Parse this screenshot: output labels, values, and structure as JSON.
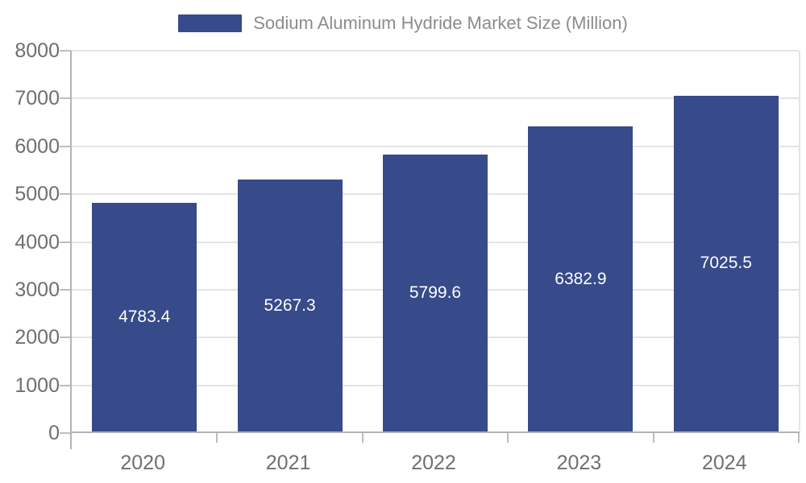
{
  "legend": {
    "label": "Sodium Aluminum Hydride Market Size (Million)"
  },
  "chart_data": {
    "type": "bar",
    "title": "Sodium Aluminum Hydride Market Size (Million)",
    "categories": [
      "2020",
      "2021",
      "2022",
      "2023",
      "2024"
    ],
    "values": [
      4783.4,
      5267.3,
      5799.6,
      6382.9,
      7025.5
    ],
    "value_labels": [
      "4783.4",
      "5267.3",
      "5799.6",
      "6382.9",
      "7025.5"
    ],
    "xlabel": "",
    "ylabel": "",
    "ylim": [
      0,
      8000
    ],
    "yticks": [
      0,
      1000,
      2000,
      3000,
      4000,
      5000,
      6000,
      7000,
      8000
    ],
    "grid": true,
    "legend_position": "top-center",
    "colors": {
      "bar": "#374A8A",
      "value_label": "#FFFFFF",
      "axis_label": "#6F6F6F",
      "title_text": "#8C8C8C",
      "gridline": "#E4E4E4",
      "axis_line": "#B3B3B3",
      "tick": "#BDBDBD",
      "background": "#FFFFFF"
    }
  }
}
